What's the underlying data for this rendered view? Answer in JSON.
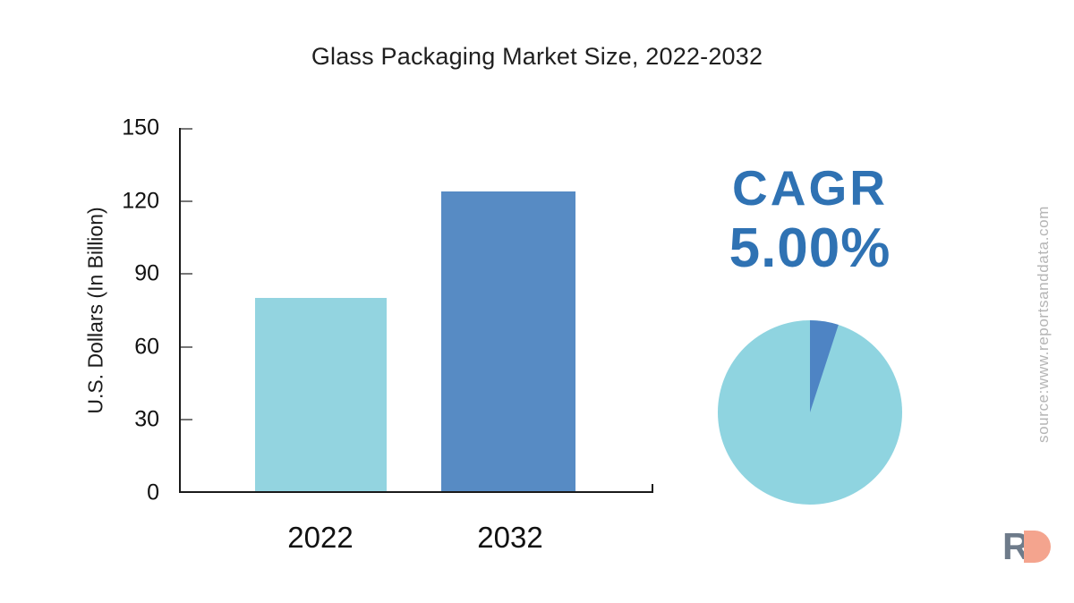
{
  "colors": {
    "title-text": "#1f1f1f",
    "axis": "#1a1a1a",
    "tick": "#777777",
    "bar-2022": "#93d4e0",
    "bar-2032": "#578bc4",
    "pie-main": "#8fd4e0",
    "pie-slice": "#4e84c4",
    "accent": "#2f72b3",
    "source-text": "#b5b5b5",
    "logo-r": "#6e7b8a",
    "logo-d": "#f4a48e"
  },
  "chart_data": [
    {
      "type": "bar",
      "title": "Glass Packaging Market Size, 2022-2032",
      "categories": [
        "2022",
        "2032"
      ],
      "values": [
        80,
        124
      ],
      "xlabel": "",
      "ylabel": "U.S. Dollars (In Billion)",
      "ylim": [
        0,
        150
      ],
      "yticks": [
        150,
        120,
        90,
        60,
        30,
        0
      ],
      "grid": false,
      "legend_position": "none",
      "annotation": {
        "label": "CAGR",
        "value": "5.00%"
      }
    },
    {
      "type": "pie",
      "values": [
        5,
        95
      ],
      "start_angle_deg": 0,
      "note": "small blue slice represents the 5.00% CAGR on a cyan disc"
    }
  ],
  "source": "source:www.reportsanddata.com",
  "logo": {
    "r": "R",
    "d": "D"
  }
}
